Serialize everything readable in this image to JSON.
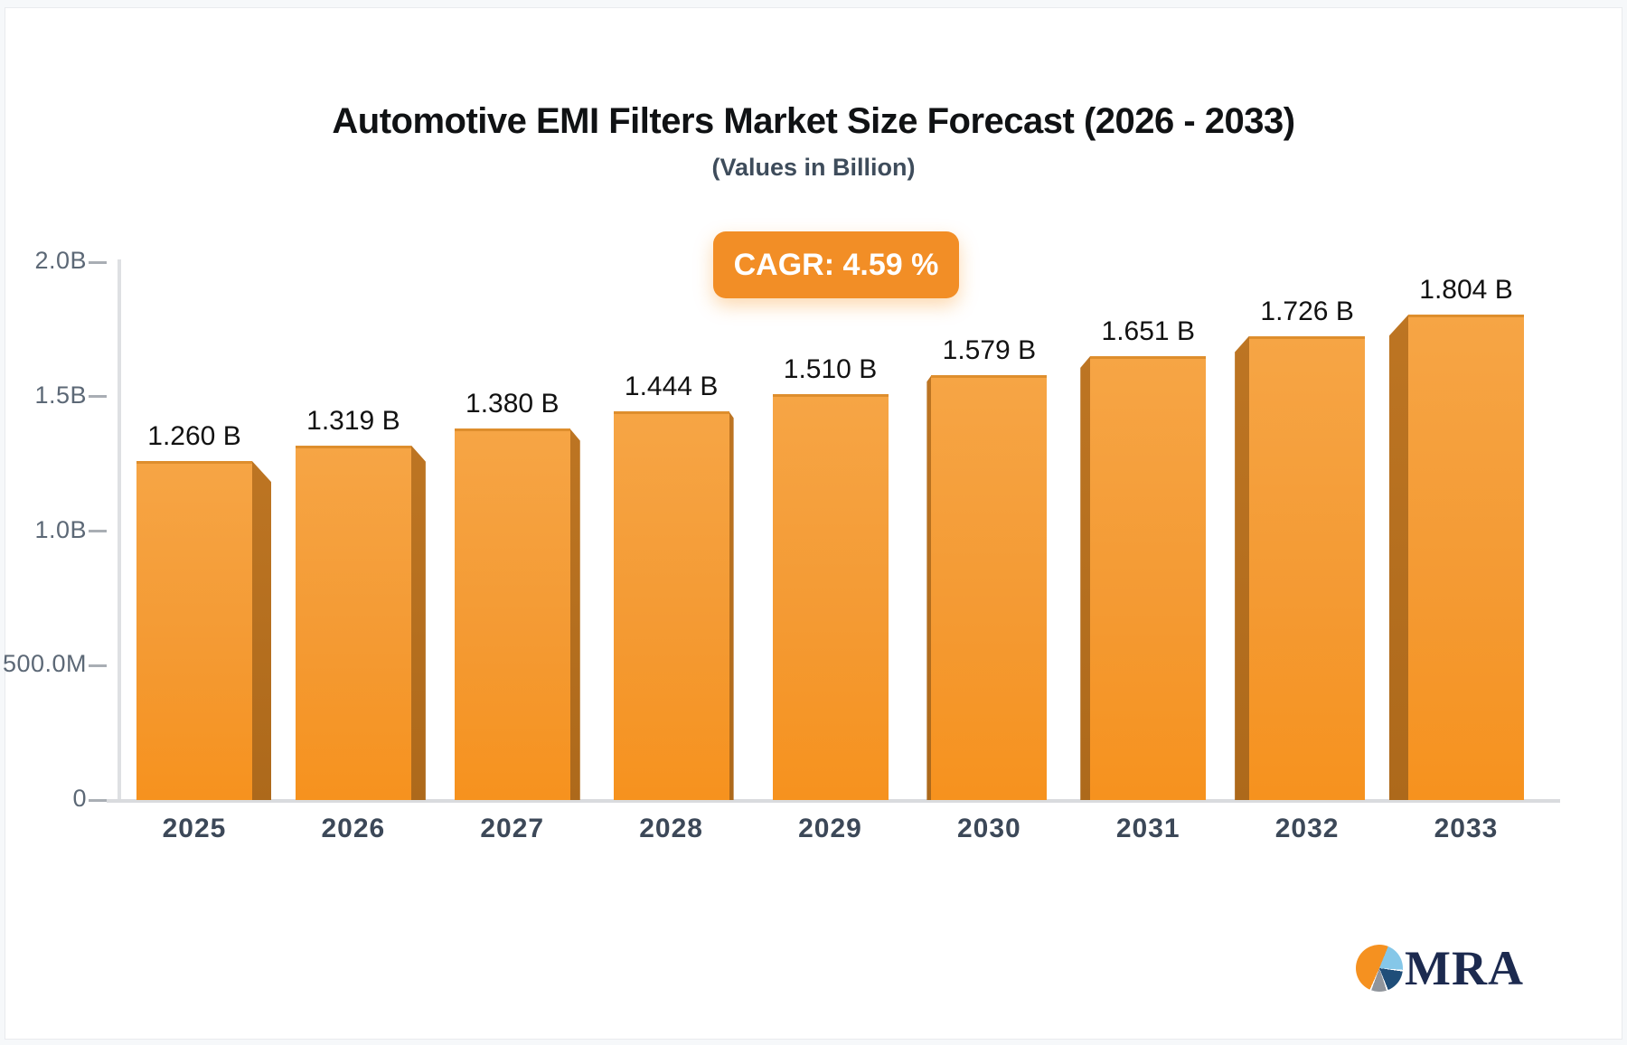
{
  "page": {
    "background": "#f6f8fa",
    "card_background": "#ffffff"
  },
  "header": {
    "title": "Automotive EMI Filters Market Size Forecast (2026 - 2033)",
    "subtitle": "(Values in Billion)"
  },
  "badge": {
    "label": "CAGR: 4.59 %",
    "background": "#f28e26",
    "text_color": "#ffffff"
  },
  "chart_data": {
    "type": "bar",
    "title": "Automotive EMI Filters Market Size Forecast (2026 - 2033)",
    "subtitle": "(Values in Billion)",
    "categories": [
      "2025",
      "2026",
      "2027",
      "2028",
      "2029",
      "2030",
      "2031",
      "2032",
      "2033"
    ],
    "values": [
      1.26,
      1.319,
      1.38,
      1.444,
      1.51,
      1.579,
      1.651,
      1.726,
      1.804
    ],
    "value_labels": [
      "1.260 B",
      "1.319 B",
      "1.380 B",
      "1.444 B",
      "1.510 B",
      "1.579 B",
      "1.651 B",
      "1.726 B",
      "1.804 B"
    ],
    "unit": "Billion",
    "xlabel": "",
    "ylabel": "",
    "ylim": [
      0,
      2.0
    ],
    "y_ticks": [
      {
        "label": "2.0B",
        "value": 2.0
      },
      {
        "label": "1.5B",
        "value": 1.5
      },
      {
        "label": "1.0B",
        "value": 1.0
      },
      {
        "label": "500.0M",
        "value": 0.5
      },
      {
        "label": "0",
        "value": 0
      }
    ],
    "grid": false,
    "legend_position": "none",
    "bar_style": {
      "face_top_color": "#f6a545",
      "face_bottom_color": "#f6921e",
      "top_edge_color": "#de8e2d",
      "side_color": "#b06c1e",
      "effect": "3d-perspective-center"
    },
    "axis_color": "#dee0e3",
    "tick_color": "#a9aeb4",
    "y_label_color": "#5c6876",
    "x_label_color": "#3c4858",
    "value_label_color": "#121212"
  },
  "logo": {
    "text": "MRA",
    "text_color": "#1c2a4f",
    "pie_colors": [
      "#f59120",
      "#85c7e8",
      "#1f4e79",
      "#90959c"
    ]
  }
}
